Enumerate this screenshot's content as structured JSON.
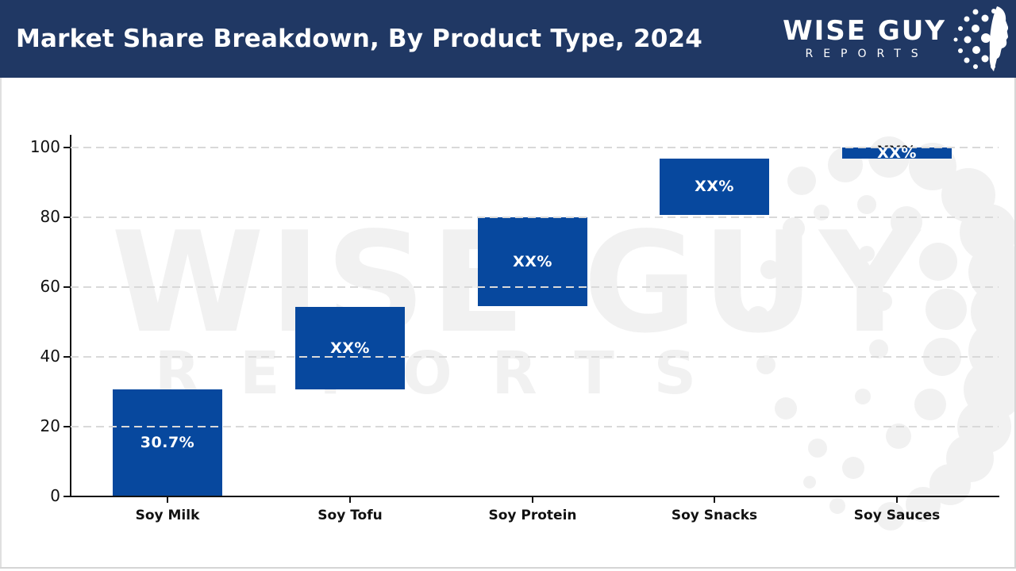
{
  "header": {
    "title": "Market Share Breakdown, By Product Type, 2024",
    "background": "#203864",
    "logo": {
      "line1": "WISE GUY",
      "line2": "REPORTS"
    }
  },
  "watermark": {
    "line1": "WISE GUY",
    "line2": "REPORTS"
  },
  "chart_data": {
    "type": "bar",
    "subtype": "waterfall",
    "title": "Market Share Breakdown, By Product Type, 2024",
    "categories": [
      "Soy Milk",
      "Soy Tofu",
      "Soy Protein",
      "Soy Snacks",
      "Soy Sauces"
    ],
    "segments": [
      {
        "category": "Soy Milk",
        "start": 0,
        "end": 30.7,
        "label": "30.7%"
      },
      {
        "category": "Soy Tofu",
        "start": 30.7,
        "end": 54.4,
        "label": "XX%"
      },
      {
        "category": "Soy Protein",
        "start": 54.5,
        "end": 79.9,
        "label": "XX%"
      },
      {
        "category": "Soy Snacks",
        "start": 80.7,
        "end": 96.8,
        "label": "XX%"
      },
      {
        "category": "Soy Sauces",
        "start": 96.9,
        "end": 99.9,
        "label": "XX%"
      }
    ],
    "yticks": [
      0,
      20,
      40,
      60,
      80,
      100
    ],
    "ylim": [
      0,
      103.8
    ],
    "xlabel": "",
    "ylabel": "",
    "legend": "none",
    "grid": {
      "axis": "y",
      "style": "dashed",
      "drawn_over_bars": true
    },
    "colors": {
      "bar": "#07489e",
      "bar_label": "#ffffff",
      "bar_label_overflow": "#1a1a1a",
      "grid": "#d9d9d9",
      "axis": "#111111",
      "watermark": "#f1f1f1"
    }
  }
}
